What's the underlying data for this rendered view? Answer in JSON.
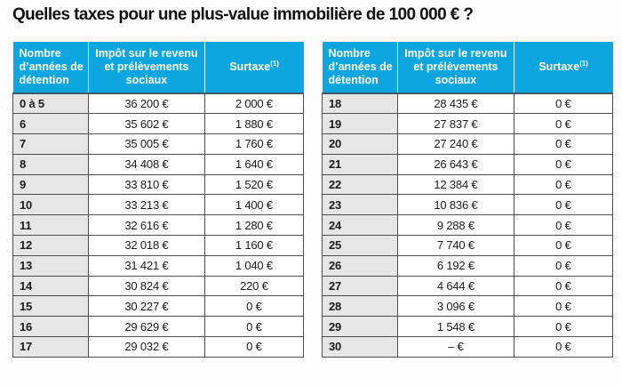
{
  "title": "Quelles taxes pour une plus-value immobilière de 100 000 € ?",
  "columns": {
    "years": "Nombre d’années de détention",
    "tax": "Impôt sur le revenu et prélèvements sociaux",
    "surtax": "Surtaxe",
    "surtax_sup": "(1)"
  },
  "chart_data": {
    "type": "table",
    "title": "Quelles taxes pour une plus-value immobilière de 100 000 € ?",
    "column_headers": [
      "Nombre d’années de détention",
      "Impôt sur le revenu et prélèvements sociaux",
      "Surtaxe(1)"
    ],
    "tables": [
      {
        "rows": [
          [
            "0 à 5",
            "36 200 €",
            "2 000 €"
          ],
          [
            "6",
            "35 602 €",
            "1 880 €"
          ],
          [
            "7",
            "35 005 €",
            "1 760 €"
          ],
          [
            "8",
            "34 408 €",
            "1 640 €"
          ],
          [
            "9",
            "33 810 €",
            "1 520 €"
          ],
          [
            "10",
            "33 213 €",
            "1 400 €"
          ],
          [
            "11",
            "32 616 €",
            "1 280 €"
          ],
          [
            "12",
            "32 018 €",
            "1 160 €"
          ],
          [
            "13",
            "31 421 €",
            "1 040 €"
          ],
          [
            "14",
            "30 824 €",
            "220 €"
          ],
          [
            "15",
            "30 227 €",
            "0 €"
          ],
          [
            "16",
            "29 629 €",
            "0 €"
          ],
          [
            "17",
            "29 032 €",
            "0 €"
          ]
        ]
      },
      {
        "rows": [
          [
            "18",
            "28 435 €",
            "0 €"
          ],
          [
            "19",
            "27 837 €",
            "0 €"
          ],
          [
            "20",
            "27 240 €",
            "0 €"
          ],
          [
            "21",
            "26 643 €",
            "0 €"
          ],
          [
            "22",
            "12 384 €",
            "0 €"
          ],
          [
            "23",
            "10 836 €",
            "0 €"
          ],
          [
            "24",
            "9 288 €",
            "0 €"
          ],
          [
            "25",
            "7 740 €",
            "0 €"
          ],
          [
            "26",
            "6 192 €",
            "0 €"
          ],
          [
            "27",
            "4 644 €",
            "0 €"
          ],
          [
            "28",
            "3 096 €",
            "0 €"
          ],
          [
            "29",
            "1 548 €",
            "0 €"
          ],
          [
            "30",
            "– €",
            "0 €"
          ]
        ]
      }
    ]
  },
  "colors": {
    "header_bg": "#0ea6e0",
    "header_border_bottom": "#3c5a68",
    "row_label_bg": "#e6e6e6",
    "border": "#4d4d4d",
    "text": "#1a1a1a",
    "page_bg": "#fdfdfd"
  }
}
